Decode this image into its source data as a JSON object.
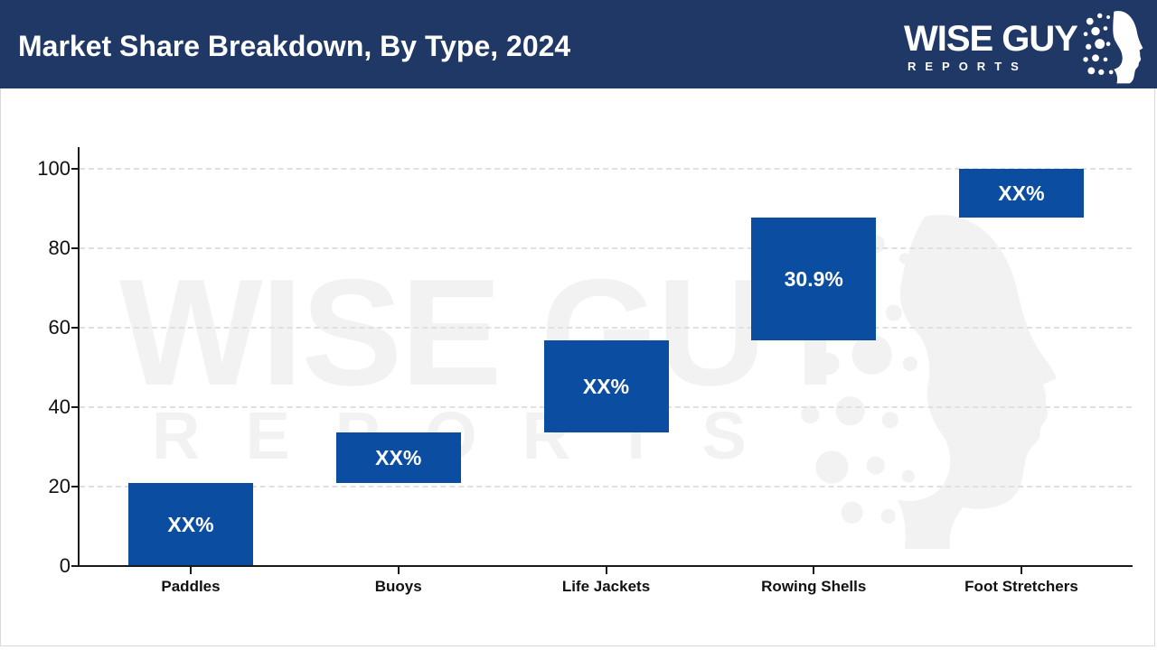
{
  "header": {
    "title": "Market Share Breakdown, By Type, 2024",
    "logo": {
      "line1": "WISE GUY",
      "line2": "REPORTS"
    }
  },
  "watermark": {
    "line1": "WISE GUY",
    "line2": "REPORTS"
  },
  "chart_data": {
    "type": "bar",
    "variant": "floating-waterfall",
    "title": "Market Share Breakdown, By Type, 2024",
    "categories": [
      "Paddles",
      "Buoys",
      "Life Jackets",
      "Rowing Shells",
      "Foot Stretchers"
    ],
    "bar_starts": [
      0,
      20.8,
      33.6,
      56.8,
      87.7
    ],
    "bar_ends": [
      20.8,
      33.6,
      56.8,
      87.7,
      100
    ],
    "segment_values": [
      20.8,
      12.8,
      23.2,
      30.9,
      12.3
    ],
    "bar_labels": [
      "XX%",
      "XX%",
      "XX%",
      "30.9%",
      "XX%"
    ],
    "yticks": [
      0,
      20,
      40,
      60,
      80,
      100
    ],
    "ylim": [
      0,
      105.5
    ],
    "xlabel": "",
    "ylabel": "",
    "grid": "horizontal-dashed",
    "legend": "none"
  },
  "colors": {
    "header_bg": "#1f3865",
    "bar": "#0b4da0",
    "bar_label": "#ffffff",
    "grid": "#e0e0e0",
    "axis": "#1a1a1a",
    "watermark": "#f2f2f2",
    "frame_border": "#d9d9d9"
  }
}
